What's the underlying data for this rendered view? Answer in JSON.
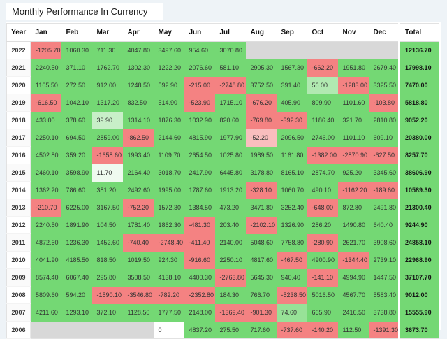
{
  "title": "Monthly Performance In Currency",
  "chart_data": {
    "type": "heatmap",
    "columns": [
      "Year",
      "Jan",
      "Feb",
      "Mar",
      "Apr",
      "May",
      "Jun",
      "Jul",
      "Aug",
      "Sep",
      "Oct",
      "Nov",
      "Dec",
      "Total"
    ],
    "rows": [
      {
        "year": "2022",
        "values": [
          -1205.7,
          1060.3,
          711.3,
          4047.8,
          3497.6,
          954.6,
          3070.8,
          null,
          null,
          null,
          null,
          null
        ],
        "total": 12136.7
      },
      {
        "year": "2021",
        "values": [
          2240.5,
          371.1,
          1762.7,
          1302.3,
          1222.2,
          2076.6,
          581.1,
          2905.3,
          1567.3,
          -662.2,
          1951.8,
          2679.4
        ],
        "total": 17998.1
      },
      {
        "year": "2020",
        "values": [
          1165.5,
          272.5,
          912.0,
          1248.5,
          592.9,
          -215.0,
          -2748.8,
          3752.5,
          391.4,
          56.0,
          -1283.0,
          3325.5
        ],
        "total": 7470.0
      },
      {
        "year": "2019",
        "values": [
          -616.5,
          1042.1,
          1317.2,
          832.5,
          514.9,
          -523.9,
          1715.1,
          -676.2,
          405.9,
          809.9,
          1101.6,
          -103.8
        ],
        "total": 5818.8
      },
      {
        "year": "2018",
        "values": [
          433.0,
          378.6,
          39.9,
          1314.1,
          1876.3,
          1032.9,
          820.6,
          -769.8,
          -392.3,
          1186.4,
          321.7,
          2810.8
        ],
        "total": 9052.2
      },
      {
        "year": "2017",
        "values": [
          2250.1,
          694.5,
          2859.0,
          -862.5,
          2144.6,
          4815.9,
          1977.9,
          -52.2,
          2096.5,
          2746.0,
          1101.1,
          609.1
        ],
        "total": 20380.0
      },
      {
        "year": "2016",
        "values": [
          4502.8,
          359.2,
          -1658.6,
          1993.4,
          1109.7,
          2654.5,
          1025.8,
          1989.5,
          1161.8,
          -1382.0,
          -2870.9,
          -627.5
        ],
        "total": 8257.7
      },
      {
        "year": "2015",
        "values": [
          2460.1,
          3598.9,
          11.7,
          2164.4,
          3018.7,
          2417.9,
          6445.8,
          3178.8,
          8165.1,
          2874.7,
          925.2,
          3345.6
        ],
        "total": 38606.9
      },
      {
        "year": "2014",
        "values": [
          1362.2,
          786.6,
          381.2,
          2492.6,
          1995.0,
          1787.6,
          1913.2,
          -328.1,
          1060.7,
          490.1,
          -1162.2,
          -189.6
        ],
        "total": 10589.3
      },
      {
        "year": "2013",
        "values": [
          -210.7,
          6225.0,
          3167.5,
          -752.2,
          1572.3,
          1384.5,
          473.2,
          3471.8,
          3252.4,
          -648.0,
          872.8,
          2491.8
        ],
        "total": 21300.4
      },
      {
        "year": "2012",
        "values": [
          2240.5,
          1891.9,
          104.5,
          1781.4,
          1862.3,
          -481.3,
          203.4,
          -2102.1,
          1326.9,
          286.2,
          1490.8,
          640.4
        ],
        "total": 9244.9
      },
      {
        "year": "2011",
        "values": [
          4872.6,
          1236.3,
          1452.6,
          -740.4,
          -2748.4,
          -411.4,
          2140.0,
          5048.6,
          7758.8,
          -280.9,
          2621.7,
          3908.6
        ],
        "total": 24858.1
      },
      {
        "year": "2010",
        "values": [
          4041.9,
          4185.5,
          818.5,
          1019.5,
          924.3,
          -916.6,
          2250.1,
          4817.6,
          -467.5,
          4900.9,
          -1344.4,
          2739.1
        ],
        "total": 22968.9
      },
      {
        "year": "2009",
        "values": [
          8574.4,
          6067.4,
          295.8,
          3508.5,
          4138.1,
          4400.3,
          -2763.8,
          5645.3,
          940.4,
          -141.1,
          4994.9,
          1447.5
        ],
        "total": 37107.7
      },
      {
        "year": "2008",
        "values": [
          5809.6,
          594.2,
          -1590.1,
          -3546.8,
          -782.2,
          -2352.8,
          184.3,
          766.7,
          -5238.5,
          5016.5,
          4567.7,
          5583.4
        ],
        "total": 9012.0
      },
      {
        "year": "2007",
        "values": [
          4211.6,
          1293.1,
          372.1,
          1128.5,
          1777.5,
          2148.0,
          -1369.4,
          -901.3,
          74.6,
          665.9,
          2416.5,
          3738.8
        ],
        "total": 15555.9
      },
      {
        "year": "2006",
        "values": [
          null,
          null,
          null,
          null,
          0,
          4837.2,
          275.5,
          717.6,
          -737.6,
          -140.2,
          112.5,
          -1391.3
        ],
        "total": 3673.7
      }
    ],
    "colors": {
      "positive": "#74d874",
      "negative": "#f48282",
      "empty": "#d8d8d8",
      "zero": "#ffffff",
      "scale_cap": 100
    }
  }
}
